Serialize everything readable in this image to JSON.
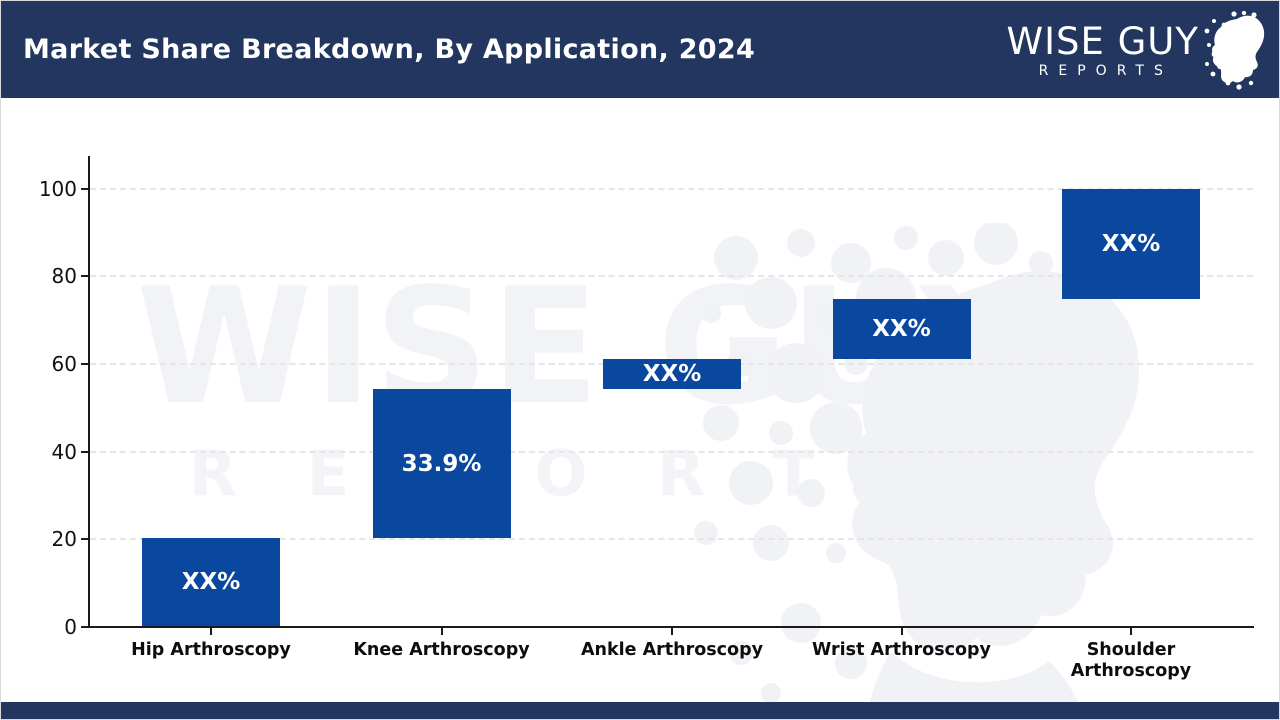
{
  "header": {
    "title": "Market Share Breakdown, By Application, 2024",
    "bg_color": "#22365f",
    "logo": {
      "wordmark": "WISE GUY",
      "subtext": "REPORTS",
      "face_icon": "dotted-face-profile-icon"
    }
  },
  "footer": {
    "bg_color": "#22365f"
  },
  "watermark": {
    "wordmark": "WISE GUY",
    "subtext": "REPORTS",
    "face_icon": "dotted-face-profile-watermark"
  },
  "chart_data": {
    "type": "bar",
    "subtype": "waterfall-floating-bars",
    "title": "Market Share Breakdown, By Application, 2024",
    "xlabel": "",
    "ylabel": "",
    "ylim": [
      0,
      100
    ],
    "yticks": [
      0,
      20,
      40,
      60,
      80,
      100
    ],
    "grid": "dashed-horizontal",
    "legend": "none",
    "bar_color": "#0a479f",
    "label_color": "#ffffff",
    "categories": [
      "Hip Arthroscopy",
      "Knee Arthroscopy",
      "Ankle Arthroscopy",
      "Wrist Arthroscopy",
      "Shoulder\nArthroscopy"
    ],
    "bars": [
      {
        "category": "Hip Arthroscopy",
        "start": 0,
        "end": 20.3,
        "value": 20.3,
        "label": "XX%"
      },
      {
        "category": "Knee Arthroscopy",
        "start": 20.3,
        "end": 54.2,
        "value": 33.9,
        "label": "33.9%"
      },
      {
        "category": "Ankle Arthroscopy",
        "start": 54.2,
        "end": 61.1,
        "value": 6.9,
        "label": "XX%"
      },
      {
        "category": "Wrist Arthroscopy",
        "start": 61.1,
        "end": 74.7,
        "value": 13.6,
        "label": "XX%"
      },
      {
        "category": "Shoulder Arthroscopy",
        "start": 74.7,
        "end": 100,
        "value": 25.3,
        "label": "XX%"
      }
    ]
  }
}
